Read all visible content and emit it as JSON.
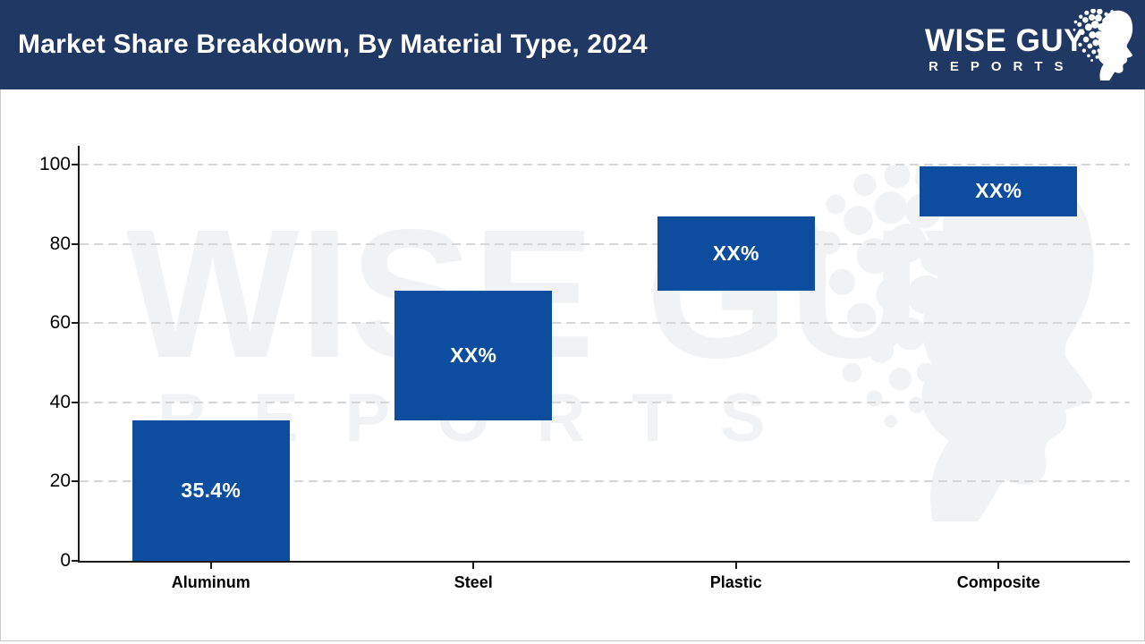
{
  "header": {
    "title": "Market Share Breakdown, By Material Type, 2024",
    "logo": {
      "wordmark": "WISE GUY",
      "sub": "REPORTS"
    }
  },
  "watermark": {
    "wordmark": "WISE GUY",
    "sub": "REPORTS"
  },
  "chart_data": {
    "type": "bar",
    "subtype": "floating-segment-waterfall",
    "title": "Market Share Breakdown, By Material Type, 2024",
    "categories": [
      "Aluminum",
      "Steel",
      "Plastic",
      "Composite"
    ],
    "segments": [
      {
        "category": "Aluminum",
        "start": 0,
        "end": 35.4,
        "label": "35.4%"
      },
      {
        "category": "Steel",
        "start": 35.4,
        "end": 68.2,
        "label": "XX%"
      },
      {
        "category": "Plastic",
        "start": 68.2,
        "end": 87.0,
        "label": "XX%"
      },
      {
        "category": "Composite",
        "start": 87.0,
        "end": 99.6,
        "label": "XX%"
      }
    ],
    "xlabel": "",
    "ylabel": "",
    "yticks": [
      0,
      20,
      40,
      60,
      80,
      100
    ],
    "ylim": [
      0,
      105
    ],
    "grid": "horizontal-dashed",
    "legend": "none",
    "bar_color": "#0d4da0",
    "bar_label_color": "#ffffff"
  },
  "colors": {
    "header_bg": "#203864",
    "bar": "#0d4da0",
    "grid": "#d6d6d6",
    "axis": "#1a1a1a",
    "watermark": "#f1f2f4"
  }
}
